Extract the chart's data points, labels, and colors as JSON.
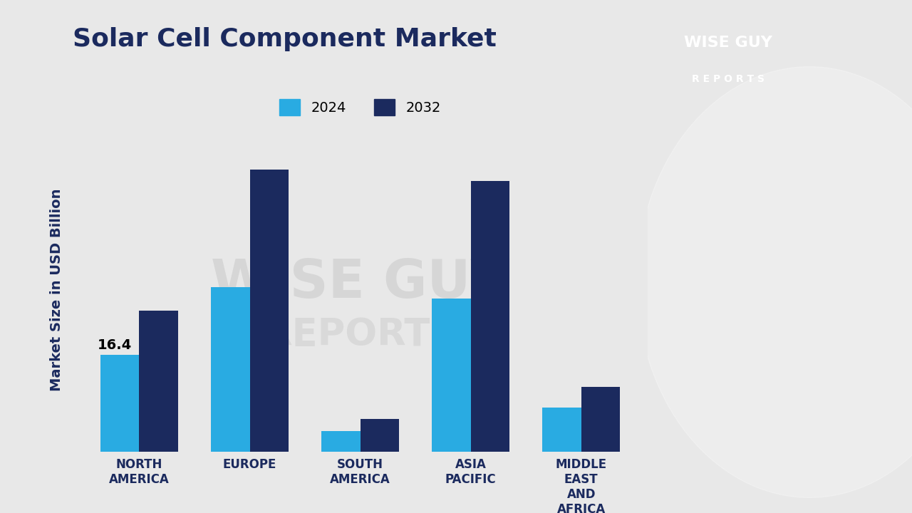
{
  "title": "Solar Cell Component Market",
  "ylabel": "Market Size in USD Billion",
  "categories": [
    "NORTH\nAMERICA",
    "EUROPE",
    "SOUTH\nAMERICA",
    "ASIA\nPACIFIC",
    "MIDDLE\nEAST\nAND\nAFRICA"
  ],
  "values_2024": [
    16.4,
    28.0,
    3.5,
    26.0,
    7.5
  ],
  "values_2032": [
    24.0,
    48.0,
    5.5,
    46.0,
    11.0
  ],
  "color_2024": "#29ABE2",
  "color_2032": "#1B2A5E",
  "label_2024": "2024",
  "label_2032": "2032",
  "annotation_value": "16.4",
  "annotation_region_idx": 0,
  "bg_color": "#E8E8E8",
  "title_color": "#1B2A5E",
  "ylabel_color": "#1B2A5E",
  "tick_color": "#1B2A5E",
  "header_color": "#1B2A5E",
  "figsize": [
    12.8,
    7.2
  ],
  "dpi": 100,
  "bar_width": 0.35,
  "ylim": [
    0,
    55
  ],
  "title_fontsize": 26,
  "ylabel_fontsize": 14,
  "tick_fontsize": 12,
  "legend_fontsize": 14,
  "annotation_fontsize": 14
}
